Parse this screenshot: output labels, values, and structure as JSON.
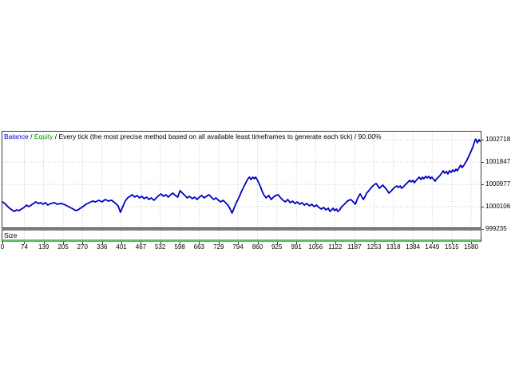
{
  "header": {
    "balance_label": "Balance",
    "equity_label": "Equity",
    "sep": " / ",
    "method": "Every tick (the most precise method based on all available least timeframes to generate each tick)",
    "quality": "90.00%"
  },
  "size_panel": {
    "label": "Size"
  },
  "colors": {
    "balance_label": "#0000cd",
    "equity_label": "#00a000",
    "line": "#0000c0",
    "grid": "#c9c9c9",
    "border": "#3c3c3c",
    "separator": "#808080",
    "size_bar": "#3aa63a"
  },
  "chart_data": {
    "type": "line",
    "title": "Strategy tester balance / equity graph",
    "xlabel": "",
    "ylabel": "",
    "legend": [
      "Balance",
      "Equity"
    ],
    "grid": true,
    "xlim": [
      0,
      1614
    ],
    "ylim": [
      999235,
      1003030
    ],
    "x_ticks": [
      0,
      74,
      139,
      205,
      270,
      336,
      401,
      467,
      532,
      598,
      663,
      729,
      794,
      860,
      925,
      991,
      1056,
      1122,
      1187,
      1253,
      1318,
      1384,
      1449,
      1515,
      1580
    ],
    "y_ticks": [
      1002718,
      1001847,
      1000977,
      1000106,
      999235
    ],
    "series": [
      {
        "name": "Balance",
        "color": "#0000c0",
        "points": [
          [
            0,
            1000292
          ],
          [
            8,
            1000230
          ],
          [
            16,
            1000137
          ],
          [
            24,
            1000044
          ],
          [
            32,
            999981
          ],
          [
            40,
            999919
          ],
          [
            48,
            999981
          ],
          [
            56,
            999950
          ],
          [
            64,
            1000012
          ],
          [
            73,
            1000075
          ],
          [
            81,
            1000168
          ],
          [
            89,
            1000106
          ],
          [
            97,
            1000168
          ],
          [
            105,
            1000230
          ],
          [
            113,
            1000292
          ],
          [
            121,
            1000230
          ],
          [
            129,
            1000261
          ],
          [
            137,
            1000199
          ],
          [
            145,
            1000261
          ],
          [
            153,
            1000168
          ],
          [
            164,
            1000230
          ],
          [
            175,
            1000261
          ],
          [
            185,
            1000199
          ],
          [
            196,
            1000230
          ],
          [
            207,
            1000199
          ],
          [
            218,
            1000137
          ],
          [
            228,
            1000075
          ],
          [
            239,
            1000012
          ],
          [
            247,
            999950
          ],
          [
            255,
            999981
          ],
          [
            263,
            1000044
          ],
          [
            271,
            1000106
          ],
          [
            282,
            1000199
          ],
          [
            293,
            1000261
          ],
          [
            304,
            1000323
          ],
          [
            314,
            1000292
          ],
          [
            325,
            1000355
          ],
          [
            336,
            1000292
          ],
          [
            347,
            1000386
          ],
          [
            357,
            1000323
          ],
          [
            368,
            1000355
          ],
          [
            379,
            1000261
          ],
          [
            390,
            1000137
          ],
          [
            398,
            999888
          ],
          [
            406,
            1000106
          ],
          [
            414,
            1000323
          ],
          [
            422,
            1000448
          ],
          [
            430,
            1000510
          ],
          [
            438,
            1000572
          ],
          [
            446,
            1000479
          ],
          [
            454,
            1000541
          ],
          [
            462,
            1000448
          ],
          [
            470,
            1000510
          ],
          [
            478,
            1000417
          ],
          [
            486,
            1000479
          ],
          [
            494,
            1000386
          ],
          [
            502,
            1000448
          ],
          [
            511,
            1000355
          ],
          [
            519,
            1000448
          ],
          [
            527,
            1000541
          ],
          [
            535,
            1000603
          ],
          [
            543,
            1000510
          ],
          [
            551,
            1000572
          ],
          [
            559,
            1000479
          ],
          [
            567,
            1000572
          ],
          [
            575,
            1000634
          ],
          [
            583,
            1000541
          ],
          [
            591,
            1000479
          ],
          [
            599,
            1000728
          ],
          [
            607,
            1000634
          ],
          [
            615,
            1000541
          ],
          [
            623,
            1000448
          ],
          [
            631,
            1000510
          ],
          [
            640,
            1000417
          ],
          [
            648,
            1000479
          ],
          [
            656,
            1000386
          ],
          [
            664,
            1000479
          ],
          [
            672,
            1000541
          ],
          [
            680,
            1000448
          ],
          [
            688,
            1000510
          ],
          [
            696,
            1000572
          ],
          [
            704,
            1000479
          ],
          [
            712,
            1000386
          ],
          [
            720,
            1000448
          ],
          [
            728,
            1000355
          ],
          [
            736,
            1000292
          ],
          [
            744,
            1000355
          ],
          [
            752,
            1000261
          ],
          [
            760,
            1000168
          ],
          [
            768,
            1000012
          ],
          [
            774,
            999857
          ],
          [
            782,
            1000075
          ],
          [
            790,
            1000292
          ],
          [
            798,
            1000479
          ],
          [
            806,
            1000697
          ],
          [
            814,
            1000883
          ],
          [
            822,
            1001070
          ],
          [
            828,
            1001194
          ],
          [
            833,
            1001256
          ],
          [
            838,
            1001163
          ],
          [
            844,
            1001256
          ],
          [
            849,
            1001194
          ],
          [
            854,
            1001256
          ],
          [
            860,
            1001132
          ],
          [
            865,
            1001008
          ],
          [
            871,
            1000852
          ],
          [
            876,
            1000697
          ],
          [
            881,
            1000572
          ],
          [
            889,
            1000448
          ],
          [
            898,
            1000541
          ],
          [
            906,
            1000386
          ],
          [
            914,
            1000479
          ],
          [
            922,
            1000541
          ],
          [
            930,
            1000572
          ],
          [
            938,
            1000448
          ],
          [
            946,
            1000355
          ],
          [
            954,
            1000292
          ],
          [
            962,
            1000386
          ],
          [
            970,
            1000261
          ],
          [
            978,
            1000323
          ],
          [
            986,
            1000230
          ],
          [
            994,
            1000292
          ],
          [
            1002,
            1000199
          ],
          [
            1010,
            1000261
          ],
          [
            1018,
            1000168
          ],
          [
            1026,
            1000230
          ],
          [
            1035,
            1000137
          ],
          [
            1043,
            1000199
          ],
          [
            1051,
            1000106
          ],
          [
            1059,
            1000168
          ],
          [
            1067,
            1000075
          ],
          [
            1075,
            1000012
          ],
          [
            1083,
            1000075
          ],
          [
            1091,
            999981
          ],
          [
            1099,
            1000044
          ],
          [
            1104,
            999919
          ],
          [
            1110,
            999981
          ],
          [
            1115,
            1000044
          ],
          [
            1120,
            999950
          ],
          [
            1126,
            1000012
          ],
          [
            1131,
            999919
          ],
          [
            1137,
            999981
          ],
          [
            1142,
            1000075
          ],
          [
            1147,
            1000137
          ],
          [
            1153,
            1000199
          ],
          [
            1158,
            1000261
          ],
          [
            1163,
            1000323
          ],
          [
            1169,
            1000355
          ],
          [
            1174,
            1000386
          ],
          [
            1180,
            1000323
          ],
          [
            1185,
            1000261
          ],
          [
            1190,
            1000199
          ],
          [
            1196,
            1000386
          ],
          [
            1201,
            1000510
          ],
          [
            1206,
            1000603
          ],
          [
            1212,
            1000479
          ],
          [
            1217,
            1000386
          ],
          [
            1223,
            1000510
          ],
          [
            1228,
            1000634
          ],
          [
            1233,
            1000697
          ],
          [
            1239,
            1000790
          ],
          [
            1244,
            1000852
          ],
          [
            1249,
            1000914
          ],
          [
            1255,
            1000977
          ],
          [
            1260,
            1001008
          ],
          [
            1266,
            1000914
          ],
          [
            1271,
            1000821
          ],
          [
            1276,
            1000883
          ],
          [
            1282,
            1000945
          ],
          [
            1287,
            1000883
          ],
          [
            1292,
            1000821
          ],
          [
            1298,
            1000728
          ],
          [
            1303,
            1000634
          ],
          [
            1309,
            1000697
          ],
          [
            1314,
            1000759
          ],
          [
            1319,
            1000821
          ],
          [
            1325,
            1000883
          ],
          [
            1330,
            1000914
          ],
          [
            1335,
            1000852
          ],
          [
            1341,
            1000914
          ],
          [
            1346,
            1000821
          ],
          [
            1352,
            1000883
          ],
          [
            1357,
            1000945
          ],
          [
            1362,
            1001008
          ],
          [
            1368,
            1001070
          ],
          [
            1373,
            1001132
          ],
          [
            1378,
            1001070
          ],
          [
            1384,
            1001132
          ],
          [
            1389,
            1001039
          ],
          [
            1395,
            1001132
          ],
          [
            1400,
            1001194
          ],
          [
            1405,
            1001256
          ],
          [
            1411,
            1001163
          ],
          [
            1416,
            1001256
          ],
          [
            1421,
            1001194
          ],
          [
            1427,
            1001287
          ],
          [
            1432,
            1001225
          ],
          [
            1438,
            1001287
          ],
          [
            1443,
            1001194
          ],
          [
            1448,
            1001256
          ],
          [
            1454,
            1001163
          ],
          [
            1459,
            1001101
          ],
          [
            1464,
            1001194
          ],
          [
            1470,
            1001256
          ],
          [
            1475,
            1001318
          ],
          [
            1481,
            1001412
          ],
          [
            1486,
            1001505
          ],
          [
            1491,
            1001412
          ],
          [
            1497,
            1001474
          ],
          [
            1502,
            1001381
          ],
          [
            1507,
            1001505
          ],
          [
            1513,
            1001443
          ],
          [
            1518,
            1001536
          ],
          [
            1524,
            1001474
          ],
          [
            1529,
            1001567
          ],
          [
            1534,
            1001505
          ],
          [
            1540,
            1001630
          ],
          [
            1545,
            1001723
          ],
          [
            1550,
            1001630
          ],
          [
            1556,
            1001723
          ],
          [
            1561,
            1001816
          ],
          [
            1567,
            1001941
          ],
          [
            1572,
            1002065
          ],
          [
            1577,
            1002190
          ],
          [
            1583,
            1002345
          ],
          [
            1588,
            1002501
          ],
          [
            1593,
            1002687
          ],
          [
            1596,
            1002740
          ],
          [
            1601,
            1002594
          ],
          [
            1607,
            1002718
          ],
          [
            1610,
            1002656
          ]
        ]
      }
    ],
    "size_series": {
      "name": "Size",
      "type": "bar",
      "color": "#3aa63a",
      "note": "flat constant-size bar spanning all ticks"
    }
  }
}
